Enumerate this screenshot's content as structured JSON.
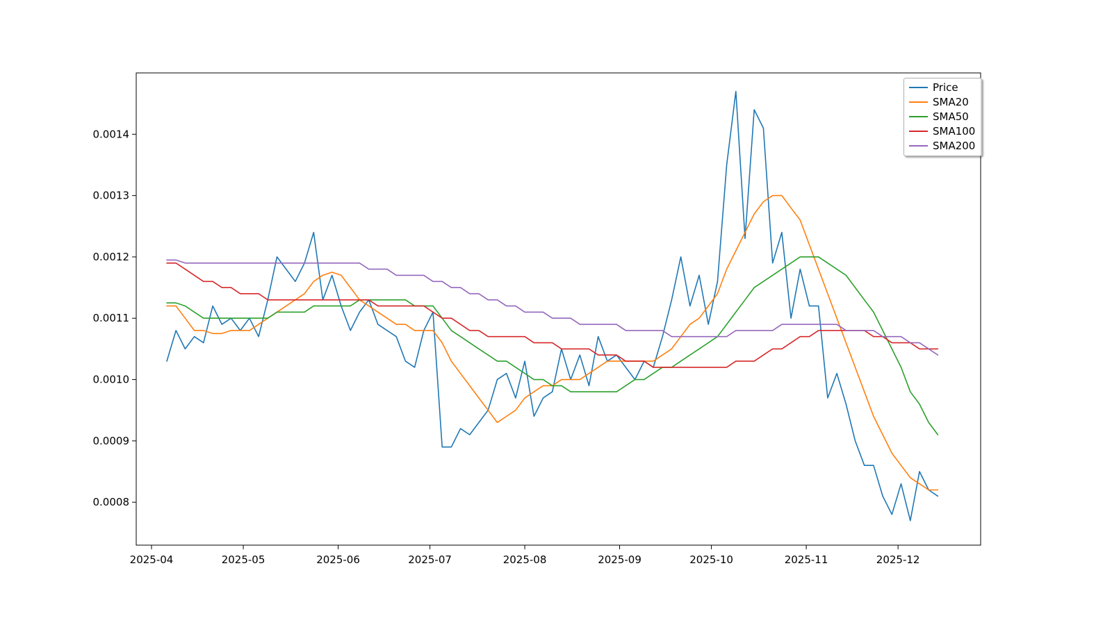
{
  "chart_data": {
    "type": "line",
    "title": "",
    "xlabel": "",
    "ylabel": "",
    "xlim": [
      "2025-03-27",
      "2025-12-28"
    ],
    "ylim": [
      0.00073,
      0.0015
    ],
    "yticks": [
      0.0008,
      0.0009,
      0.001,
      0.0011,
      0.0012,
      0.0013,
      0.0014
    ],
    "xticks": [
      "2025-04",
      "2025-05",
      "2025-06",
      "2025-07",
      "2025-08",
      "2025-09",
      "2025-10",
      "2025-11",
      "2025-12"
    ],
    "grid": false,
    "legend_position": "upper right",
    "dates": [
      "2025-04-06",
      "2025-04-09",
      "2025-04-12",
      "2025-04-15",
      "2025-04-18",
      "2025-04-21",
      "2025-04-24",
      "2025-04-27",
      "2025-04-30",
      "2025-05-03",
      "2025-05-06",
      "2025-05-09",
      "2025-05-12",
      "2025-05-15",
      "2025-05-18",
      "2025-05-21",
      "2025-05-24",
      "2025-05-27",
      "2025-05-30",
      "2025-06-02",
      "2025-06-05",
      "2025-06-08",
      "2025-06-11",
      "2025-06-14",
      "2025-06-17",
      "2025-06-20",
      "2025-06-23",
      "2025-06-26",
      "2025-06-29",
      "2025-07-02",
      "2025-07-05",
      "2025-07-08",
      "2025-07-11",
      "2025-07-14",
      "2025-07-17",
      "2025-07-20",
      "2025-07-23",
      "2025-07-26",
      "2025-07-29",
      "2025-08-01",
      "2025-08-04",
      "2025-08-07",
      "2025-08-10",
      "2025-08-13",
      "2025-08-16",
      "2025-08-19",
      "2025-08-22",
      "2025-08-25",
      "2025-08-28",
      "2025-08-31",
      "2025-09-03",
      "2025-09-06",
      "2025-09-09",
      "2025-09-12",
      "2025-09-15",
      "2025-09-18",
      "2025-09-21",
      "2025-09-24",
      "2025-09-27",
      "2025-09-30",
      "2025-10-03",
      "2025-10-06",
      "2025-10-09",
      "2025-10-12",
      "2025-10-15",
      "2025-10-18",
      "2025-10-21",
      "2025-10-24",
      "2025-10-27",
      "2025-10-30",
      "2025-11-02",
      "2025-11-05",
      "2025-11-08",
      "2025-11-11",
      "2025-11-14",
      "2025-11-17",
      "2025-11-20",
      "2025-11-23",
      "2025-11-26",
      "2025-11-29",
      "2025-12-02",
      "2025-12-05",
      "2025-12-08",
      "2025-12-11",
      "2025-12-14"
    ],
    "series": [
      {
        "name": "Price",
        "color": "#1f77b4",
        "values": [
          0.00103,
          0.00108,
          0.00105,
          0.00107,
          0.00106,
          0.00112,
          0.00109,
          0.0011,
          0.00108,
          0.0011,
          0.00107,
          0.00113,
          0.0012,
          0.00118,
          0.00116,
          0.00119,
          0.00124,
          0.00113,
          0.00117,
          0.00112,
          0.00108,
          0.00111,
          0.00113,
          0.00109,
          0.00108,
          0.00107,
          0.00103,
          0.00102,
          0.00108,
          0.00111,
          0.00089,
          0.00089,
          0.00092,
          0.00091,
          0.00093,
          0.00095,
          0.001,
          0.00101,
          0.00097,
          0.00103,
          0.00094,
          0.00097,
          0.00098,
          0.00105,
          0.001,
          0.00104,
          0.00099,
          0.00107,
          0.00103,
          0.00104,
          0.00102,
          0.001,
          0.00103,
          0.00102,
          0.00107,
          0.00113,
          0.0012,
          0.00112,
          0.00117,
          0.00109,
          0.00116,
          0.00135,
          0.00147,
          0.00123,
          0.00144,
          0.00141,
          0.00119,
          0.00124,
          0.0011,
          0.00118,
          0.00112,
          0.00112,
          0.00097,
          0.00101,
          0.00096,
          0.0009,
          0.00086,
          0.00086,
          0.00081,
          0.00078,
          0.00083,
          0.00077,
          0.00085,
          0.00082,
          0.00081
        ]
      },
      {
        "name": "SMA20",
        "color": "#ff7f0e",
        "values": [
          0.00112,
          0.00112,
          0.0011,
          0.00108,
          0.00108,
          0.001075,
          0.001075,
          0.00108,
          0.00108,
          0.00108,
          0.00109,
          0.0011,
          0.00111,
          0.00112,
          0.00113,
          0.00114,
          0.00116,
          0.00117,
          0.001175,
          0.00117,
          0.00115,
          0.00113,
          0.00112,
          0.00111,
          0.0011,
          0.00109,
          0.00109,
          0.00108,
          0.00108,
          0.00108,
          0.00106,
          0.00103,
          0.00101,
          0.00099,
          0.00097,
          0.00095,
          0.00093,
          0.00094,
          0.00095,
          0.00097,
          0.00098,
          0.00099,
          0.00099,
          0.001,
          0.001,
          0.001,
          0.00101,
          0.00102,
          0.00103,
          0.00103,
          0.00103,
          0.00103,
          0.00103,
          0.00103,
          0.00104,
          0.00105,
          0.00107,
          0.00109,
          0.0011,
          0.00112,
          0.00114,
          0.00118,
          0.00121,
          0.00124,
          0.00127,
          0.00129,
          0.0013,
          0.0013,
          0.00128,
          0.00126,
          0.00122,
          0.00118,
          0.00114,
          0.0011,
          0.00106,
          0.00102,
          0.00098,
          0.00094,
          0.00091,
          0.00088,
          0.00086,
          0.00084,
          0.00083,
          0.00082,
          0.00082
        ]
      },
      {
        "name": "SMA50",
        "color": "#2ca02c",
        "values": [
          0.001125,
          0.001125,
          0.00112,
          0.00111,
          0.0011,
          0.0011,
          0.0011,
          0.0011,
          0.0011,
          0.0011,
          0.0011,
          0.0011,
          0.00111,
          0.00111,
          0.00111,
          0.00111,
          0.00112,
          0.00112,
          0.00112,
          0.00112,
          0.00112,
          0.00113,
          0.00113,
          0.00113,
          0.00113,
          0.00113,
          0.00113,
          0.00112,
          0.00112,
          0.00112,
          0.0011,
          0.00108,
          0.00107,
          0.00106,
          0.00105,
          0.00104,
          0.00103,
          0.00103,
          0.00102,
          0.00101,
          0.001,
          0.001,
          0.00099,
          0.00099,
          0.00098,
          0.00098,
          0.00098,
          0.00098,
          0.00098,
          0.00098,
          0.00099,
          0.001,
          0.001,
          0.00101,
          0.00102,
          0.00102,
          0.00103,
          0.00104,
          0.00105,
          0.00106,
          0.00107,
          0.00109,
          0.00111,
          0.00113,
          0.00115,
          0.00116,
          0.00117,
          0.00118,
          0.00119,
          0.0012,
          0.0012,
          0.0012,
          0.00119,
          0.00118,
          0.00117,
          0.00115,
          0.00113,
          0.00111,
          0.00108,
          0.00105,
          0.00102,
          0.00098,
          0.00096,
          0.00093,
          0.00091
        ]
      },
      {
        "name": "SMA100",
        "color": "#d62728",
        "values": [
          0.00119,
          0.00119,
          0.00118,
          0.00117,
          0.00116,
          0.00116,
          0.00115,
          0.00115,
          0.00114,
          0.00114,
          0.00114,
          0.00113,
          0.00113,
          0.00113,
          0.00113,
          0.00113,
          0.00113,
          0.00113,
          0.00113,
          0.00113,
          0.00113,
          0.00113,
          0.00113,
          0.00112,
          0.00112,
          0.00112,
          0.00112,
          0.00112,
          0.00112,
          0.00111,
          0.0011,
          0.0011,
          0.00109,
          0.00108,
          0.00108,
          0.00107,
          0.00107,
          0.00107,
          0.00107,
          0.00107,
          0.00106,
          0.00106,
          0.00106,
          0.00105,
          0.00105,
          0.00105,
          0.00105,
          0.00104,
          0.00104,
          0.00104,
          0.00103,
          0.00103,
          0.00103,
          0.00102,
          0.00102,
          0.00102,
          0.00102,
          0.00102,
          0.00102,
          0.00102,
          0.00102,
          0.00102,
          0.00103,
          0.00103,
          0.00103,
          0.00104,
          0.00105,
          0.00105,
          0.00106,
          0.00107,
          0.00107,
          0.00108,
          0.00108,
          0.00108,
          0.00108,
          0.00108,
          0.00108,
          0.00107,
          0.00107,
          0.00106,
          0.00106,
          0.00106,
          0.00105,
          0.00105,
          0.00105
        ]
      },
      {
        "name": "SMA200",
        "color": "#9467bd",
        "values": [
          0.001195,
          0.001195,
          0.00119,
          0.00119,
          0.00119,
          0.00119,
          0.00119,
          0.00119,
          0.00119,
          0.00119,
          0.00119,
          0.00119,
          0.00119,
          0.00119,
          0.00119,
          0.00119,
          0.00119,
          0.00119,
          0.00119,
          0.00119,
          0.00119,
          0.00119,
          0.00118,
          0.00118,
          0.00118,
          0.00117,
          0.00117,
          0.00117,
          0.00117,
          0.00116,
          0.00116,
          0.00115,
          0.00115,
          0.00114,
          0.00114,
          0.00113,
          0.00113,
          0.00112,
          0.00112,
          0.00111,
          0.00111,
          0.00111,
          0.0011,
          0.0011,
          0.0011,
          0.00109,
          0.00109,
          0.00109,
          0.00109,
          0.00109,
          0.00108,
          0.00108,
          0.00108,
          0.00108,
          0.00108,
          0.00107,
          0.00107,
          0.00107,
          0.00107,
          0.00107,
          0.00107,
          0.00107,
          0.00108,
          0.00108,
          0.00108,
          0.00108,
          0.00108,
          0.00109,
          0.00109,
          0.00109,
          0.00109,
          0.00109,
          0.00109,
          0.00109,
          0.00108,
          0.00108,
          0.00108,
          0.00108,
          0.00107,
          0.00107,
          0.00107,
          0.00106,
          0.00106,
          0.00105,
          0.00104
        ]
      }
    ]
  }
}
